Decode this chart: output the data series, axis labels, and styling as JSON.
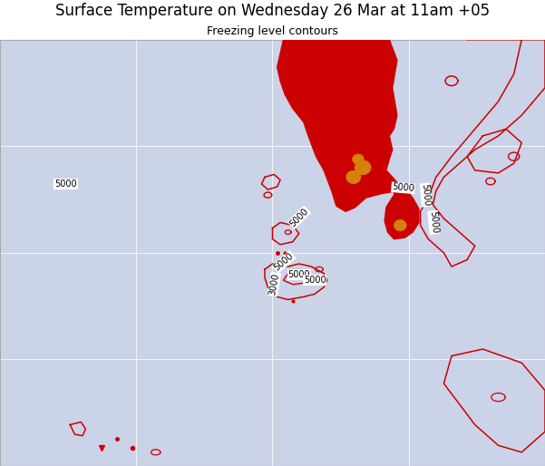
{
  "title": "Surface Temperature on Wednesday 26 Mar at 11am +05",
  "subtitle": "Freezing level contours",
  "title_fontsize": 12,
  "subtitle_fontsize": 9,
  "background_color": "#ffffff",
  "map_bg_color": "#cbd3e8",
  "land_color": "#cc0000",
  "land_highlight_color": "#d4820a",
  "contour_color": "#cc0000",
  "grid_color": "#ffffff",
  "border_color": "#aaaaaa",
  "figsize": [
    6.01,
    5.14
  ],
  "dpi": 100,
  "lon_min": 55.0,
  "lon_max": 90.0,
  "lat_min": -10.5,
  "lat_max": 20.5
}
